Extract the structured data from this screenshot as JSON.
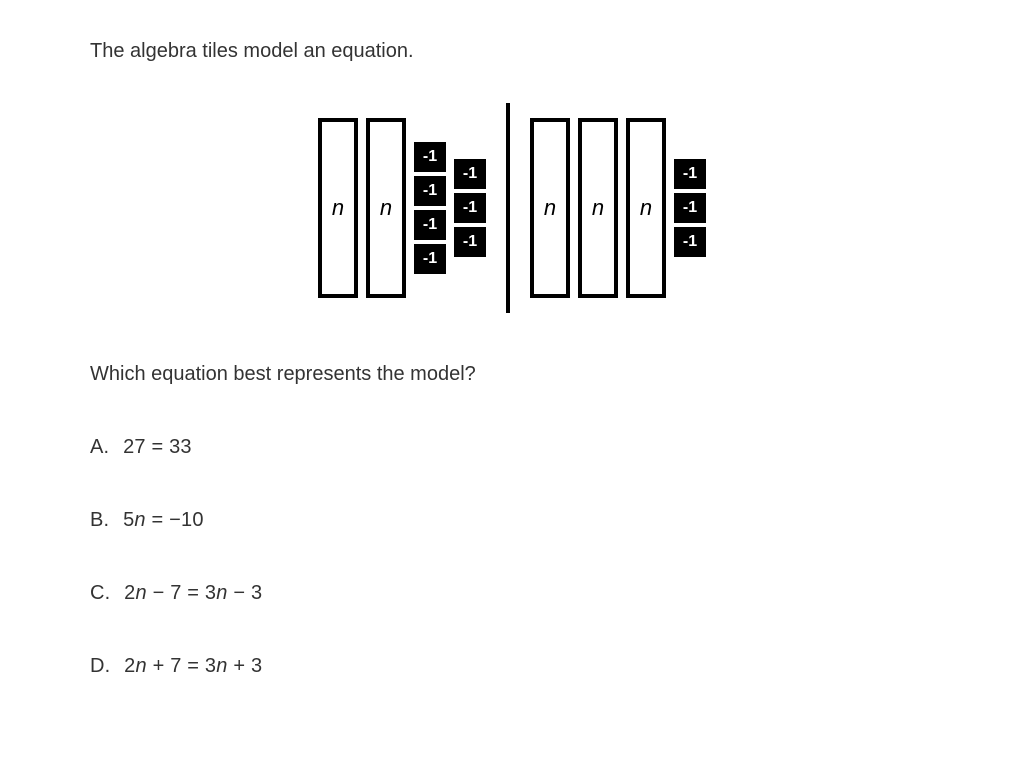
{
  "question": {
    "intro": "The algebra tiles model an equation.",
    "sub": "Which equation best represents the model?"
  },
  "diagram": {
    "n_label": "n",
    "unit_label": "-1",
    "left": {
      "n_tiles": 2,
      "unit_columns": [
        4,
        3
      ]
    },
    "right": {
      "n_tiles": 3,
      "unit_columns": [
        3
      ]
    },
    "colors": {
      "n_border": "#000000",
      "n_fill": "#ffffff",
      "unit_bg": "#000000",
      "unit_fg": "#ffffff",
      "divider": "#000000"
    }
  },
  "choices": {
    "a": {
      "label": "A.",
      "text": "27 = 33"
    },
    "b": {
      "label": "B.",
      "prefix": "5",
      "var": "n",
      "rest": " = −10"
    },
    "c": {
      "label": "C.",
      "prefix": "2",
      "var": "n",
      "mid": " − 7 = 3",
      "var2": "n",
      "rest": " − 3"
    },
    "d": {
      "label": "D.",
      "prefix": "2",
      "var": "n",
      "mid": " + 7 = 3",
      "var2": "n",
      "rest": " + 3"
    }
  }
}
